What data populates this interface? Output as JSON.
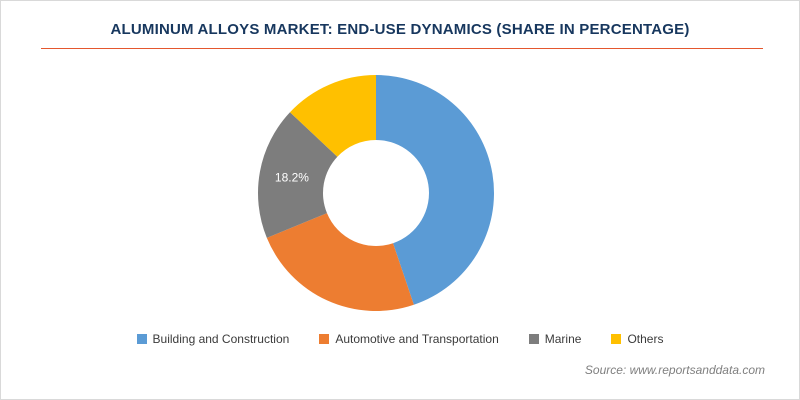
{
  "chart_data": {
    "type": "pie",
    "subtype": "donut",
    "title": "ALUMINUM ALLOYS MARKET: END-USE DYNAMICS (SHARE IN PERCENTAGE)",
    "start_angle_deg": -90,
    "direction": "clockwise",
    "legend_position": "bottom",
    "inner_radius_ratio": 0.45,
    "segments": [
      {
        "label": "Building and Construction",
        "value": 44.8,
        "color": "#5b9bd5",
        "data_label": ""
      },
      {
        "label": "Automotive and Transportation",
        "value": 24.0,
        "color": "#ed7d31",
        "data_label": ""
      },
      {
        "label": "Marine",
        "value": 18.2,
        "color": "#7d7d7d",
        "data_label": "18.2%"
      },
      {
        "label": "Others",
        "value": 13.0,
        "color": "#ffc000",
        "data_label": ""
      }
    ]
  },
  "source": "Source: www.reportsanddata.com",
  "colors": {
    "title": "#17375e",
    "divider": "#e4572e",
    "source_text": "#7f7f7f",
    "border": "#d9d9d9",
    "background": "#ffffff",
    "data_label_text": "#ffffff",
    "legend_text": "#3b3b3b"
  }
}
